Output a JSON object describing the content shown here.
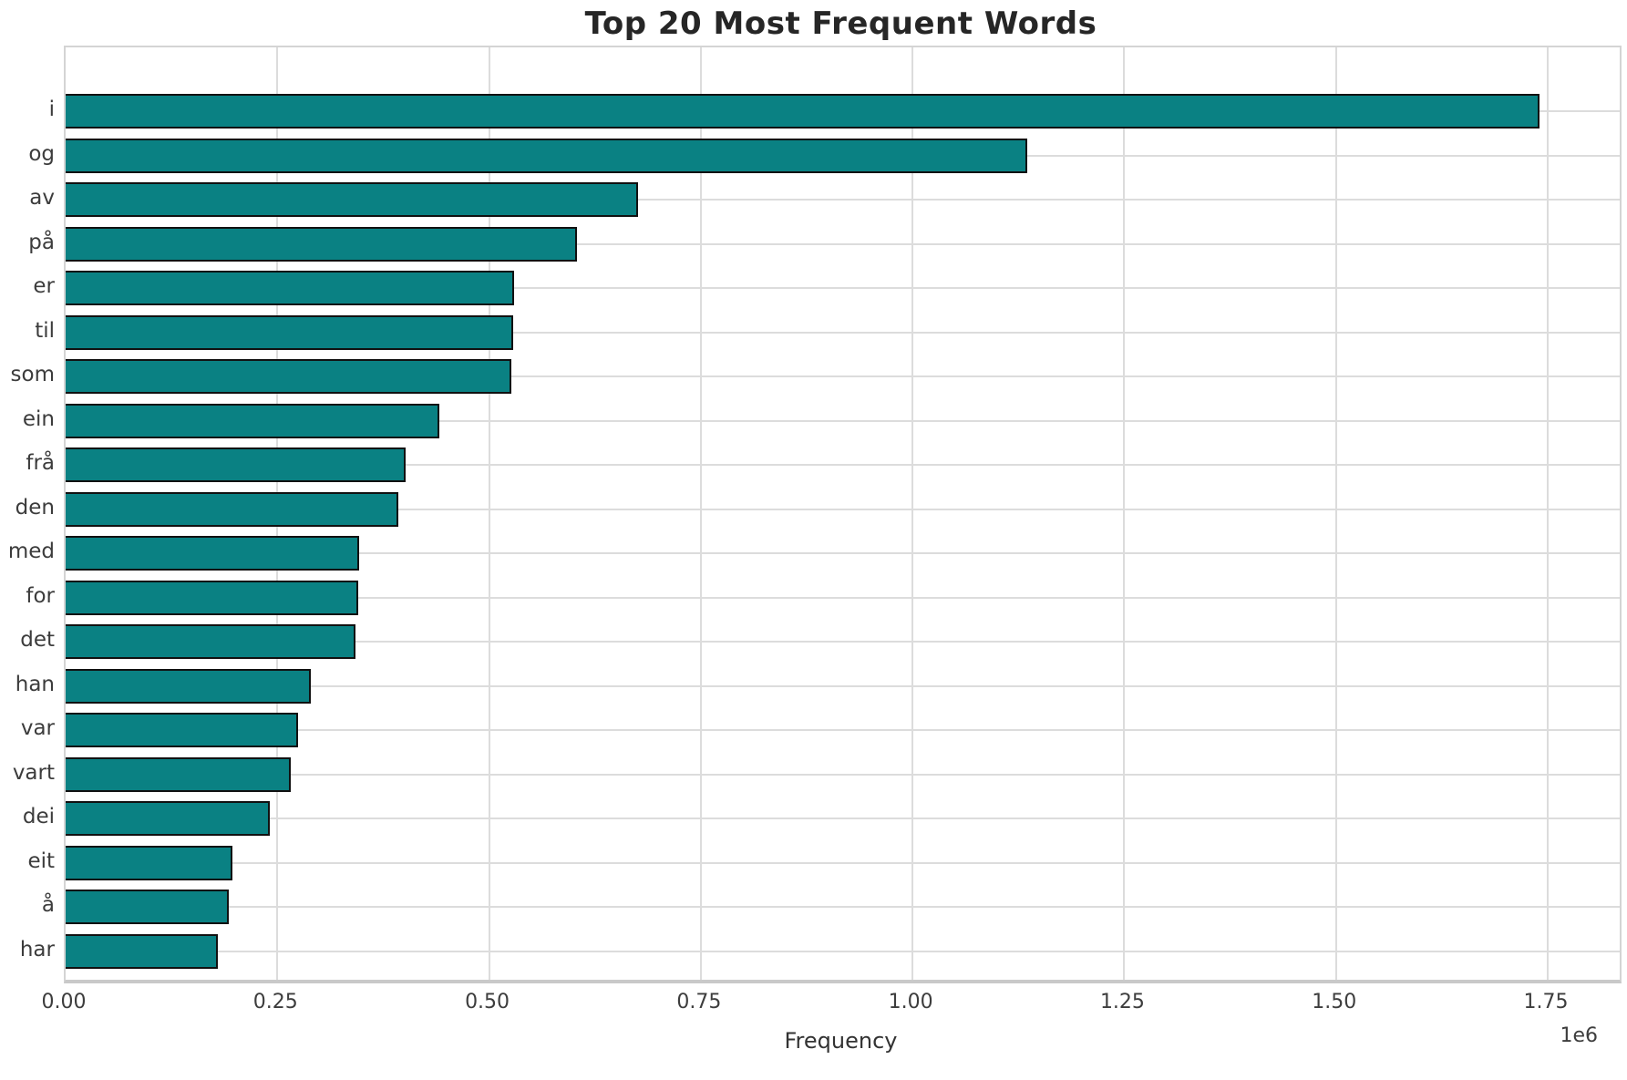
{
  "chart_data": {
    "type": "bar",
    "orientation": "horizontal",
    "title": "Top 20 Most Frequent Words",
    "xlabel": "Frequency",
    "ylabel": "",
    "categories": [
      "i",
      "og",
      "av",
      "på",
      "er",
      "til",
      "som",
      "ein",
      "frå",
      "den",
      "med",
      "for",
      "det",
      "han",
      "var",
      "vart",
      "dei",
      "eit",
      "å",
      "har"
    ],
    "values": [
      1740000,
      1135000,
      676000,
      604000,
      530000,
      528000,
      526000,
      441000,
      401000,
      393000,
      347000,
      345000,
      342000,
      290000,
      274000,
      266000,
      241000,
      197000,
      193000,
      180000
    ],
    "xlim": [
      0,
      1835000
    ],
    "xticks": [
      0,
      250000,
      500000,
      750000,
      1000000,
      1250000,
      1500000,
      1750000
    ],
    "xtick_labels": [
      "0.00",
      "0.25",
      "0.50",
      "0.75",
      "1.00",
      "1.25",
      "1.50",
      "1.75"
    ],
    "x_multiplier_label": "1e6",
    "grid": true,
    "legend": false,
    "bar_color": "#0a8183",
    "bar_edge_color": "#111111",
    "grid_color": "#dcdcdc"
  }
}
